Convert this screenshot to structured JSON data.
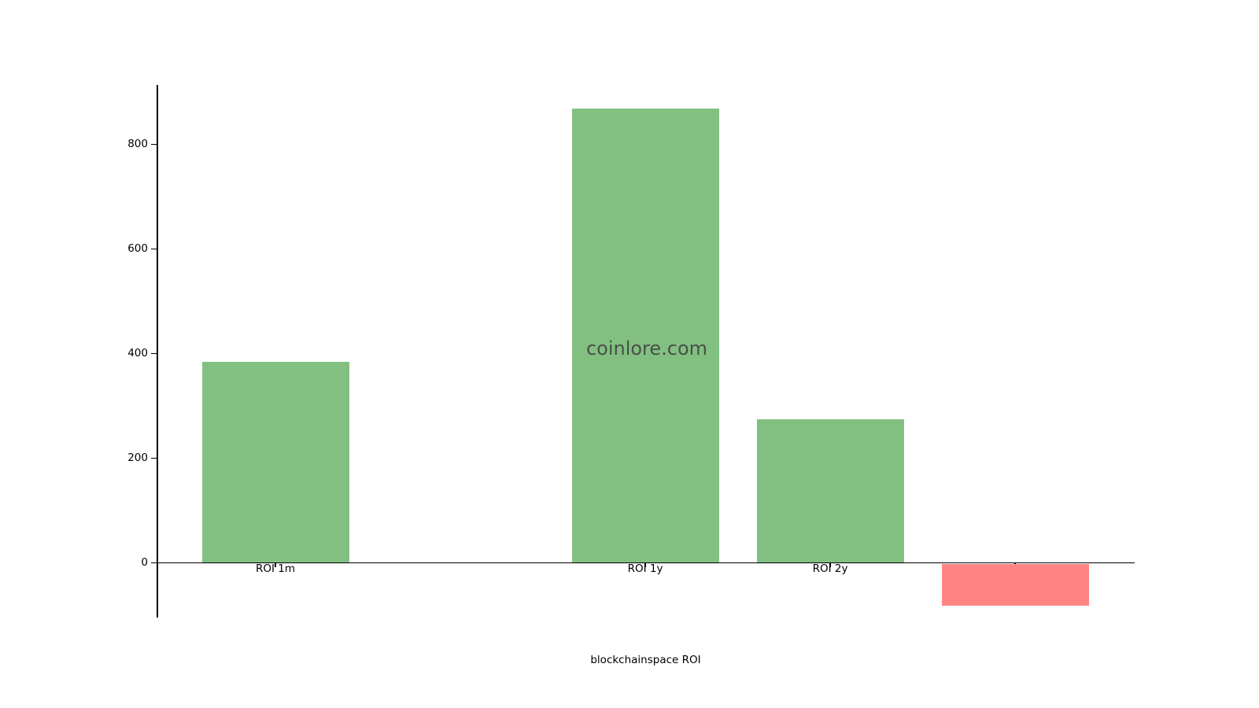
{
  "chart_data": {
    "type": "bar",
    "title": "blockchainspace ROI",
    "watermark": "coinlore.com",
    "categories": [
      "ROI 1m",
      "ROI 1y",
      "ROI 2y",
      ""
    ],
    "values": [
      384,
      868,
      275,
      -80
    ],
    "x_positions": [
      0,
      2,
      3,
      4
    ],
    "yticks": [
      0,
      200,
      400,
      600,
      800
    ],
    "ylim": [
      -104,
      914
    ],
    "xlabel": "",
    "ylabel": "",
    "grid": false,
    "legend_position": "none",
    "colors": {
      "positive_bar": "#82c082",
      "negative_bar": "#ff8585",
      "axis": "#000000",
      "watermark_text": "#3d3d3d",
      "tick_text": "#000000"
    }
  }
}
